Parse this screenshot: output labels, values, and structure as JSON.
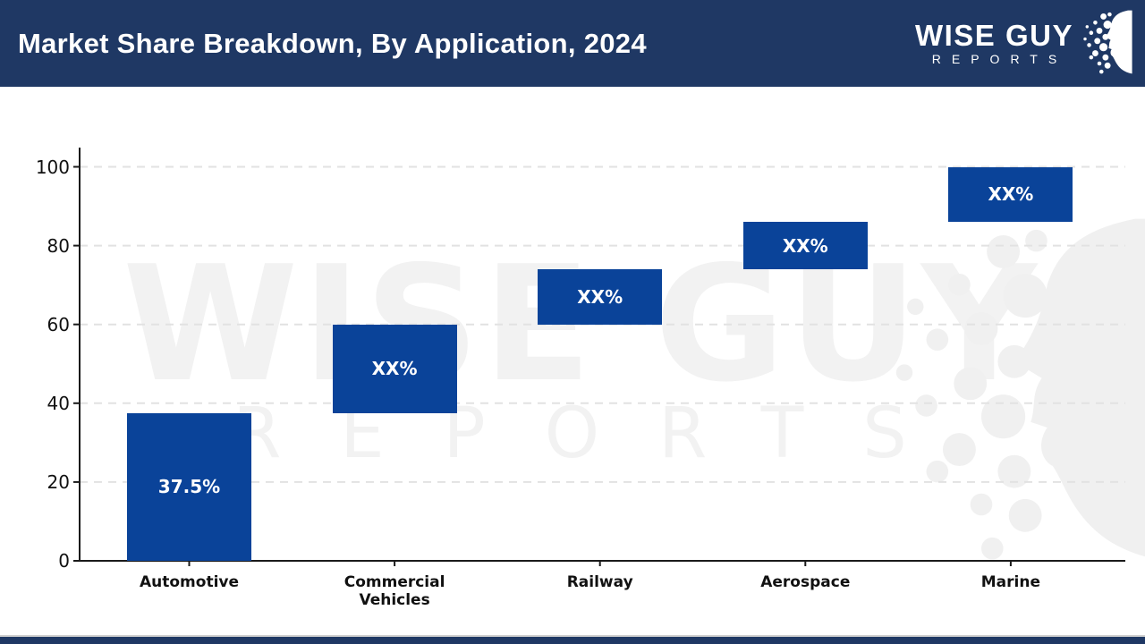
{
  "header": {
    "title": "Market Share Breakdown, By Application, 2024",
    "logo": {
      "line1": "WISE GUY",
      "line2": "REPORTS"
    }
  },
  "watermark": {
    "line1": "WISE GUY",
    "line2": "REPORTS"
  },
  "chart_data": {
    "type": "bar",
    "subtype": "waterfall",
    "title": "Market Share Breakdown, By Application, 2024",
    "categories": [
      "Automotive",
      "Commercial Vehicles",
      "Railway",
      "Aerospace",
      "Marine"
    ],
    "series": [
      {
        "name": "Market Share",
        "segments": [
          {
            "category": "Automotive",
            "start": 0,
            "end": 37.5,
            "label": "37.5%"
          },
          {
            "category": "Commercial Vehicles",
            "start": 37.5,
            "end": 60,
            "label": "XX%"
          },
          {
            "category": "Railway",
            "start": 60,
            "end": 74,
            "label": "XX%"
          },
          {
            "category": "Aerospace",
            "start": 74,
            "end": 86,
            "label": "XX%"
          },
          {
            "category": "Marine",
            "start": 86,
            "end": 100,
            "label": "XX%"
          }
        ]
      }
    ],
    "y_ticks": [
      0,
      20,
      40,
      60,
      80,
      100
    ],
    "ylim": [
      0,
      105
    ],
    "xlabel": "",
    "ylabel": "",
    "grid": "dashed-horizontal",
    "legend": "none",
    "bar_color": "#0a4399",
    "bar_label_color": "#ffffff",
    "axis_color": "#1a1a1a",
    "grid_color": "#e2e2e2",
    "tick_label_color": "#111111"
  },
  "colors": {
    "header_bg": "#1f3864",
    "footer_bg": "#1f3864",
    "page_bg": "#ffffff",
    "watermark": "#f2f2f2"
  }
}
